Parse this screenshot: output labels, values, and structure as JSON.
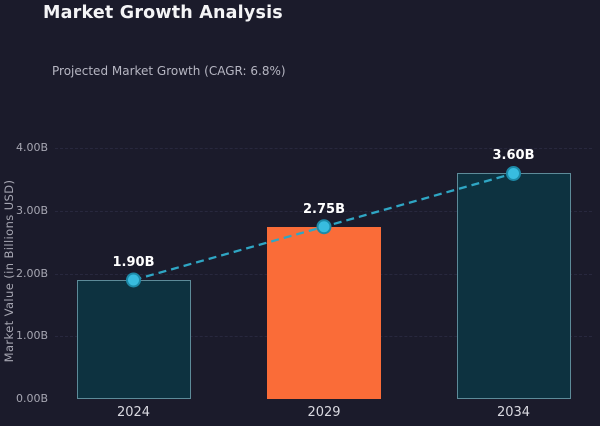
{
  "header": {
    "title": "Market Growth Analysis",
    "subtitle": "Projected Market Growth (CAGR: 6.8%)"
  },
  "chart_data": {
    "type": "bar",
    "categories": [
      "2024",
      "2029",
      "2034"
    ],
    "values": [
      1.9,
      2.75,
      3.6
    ],
    "value_labels": [
      "1.90B",
      "2.75B",
      "3.60B"
    ],
    "title": "Market Growth Analysis",
    "subtitle": "Projected Market Growth (CAGR: 6.8%)",
    "xlabel": "",
    "ylabel": "Market Value (in Billions USD)",
    "ylim": [
      0,
      4
    ],
    "ytick_labels": [
      "0.00B",
      "1.00B",
      "2.00B",
      "3.00B",
      "4.00B"
    ],
    "grid": true,
    "legend": false,
    "overlays": [
      {
        "type": "line",
        "style": "dashed",
        "marker": "circle",
        "x": [
          "2024",
          "2029",
          "2034"
        ],
        "y": [
          1.9,
          2.75,
          3.6
        ]
      }
    ],
    "colors": {
      "background": "#1b1b2b",
      "bar_teal_fill": "#0d3240",
      "bar_teal_border": "#5d8b99",
      "bar_orange": "#fa6c38",
      "trend_line": "#2fa6c4",
      "marker_fill": "#38bcdf",
      "marker_ring": "#1d8aa8",
      "value_label_text": "#ffffff",
      "axis_text": "#a6a6b2",
      "xtick_text": "#d9d9e0",
      "gridline": "#28283e"
    },
    "bar_color_keys": [
      "teal",
      "orange",
      "teal"
    ]
  }
}
